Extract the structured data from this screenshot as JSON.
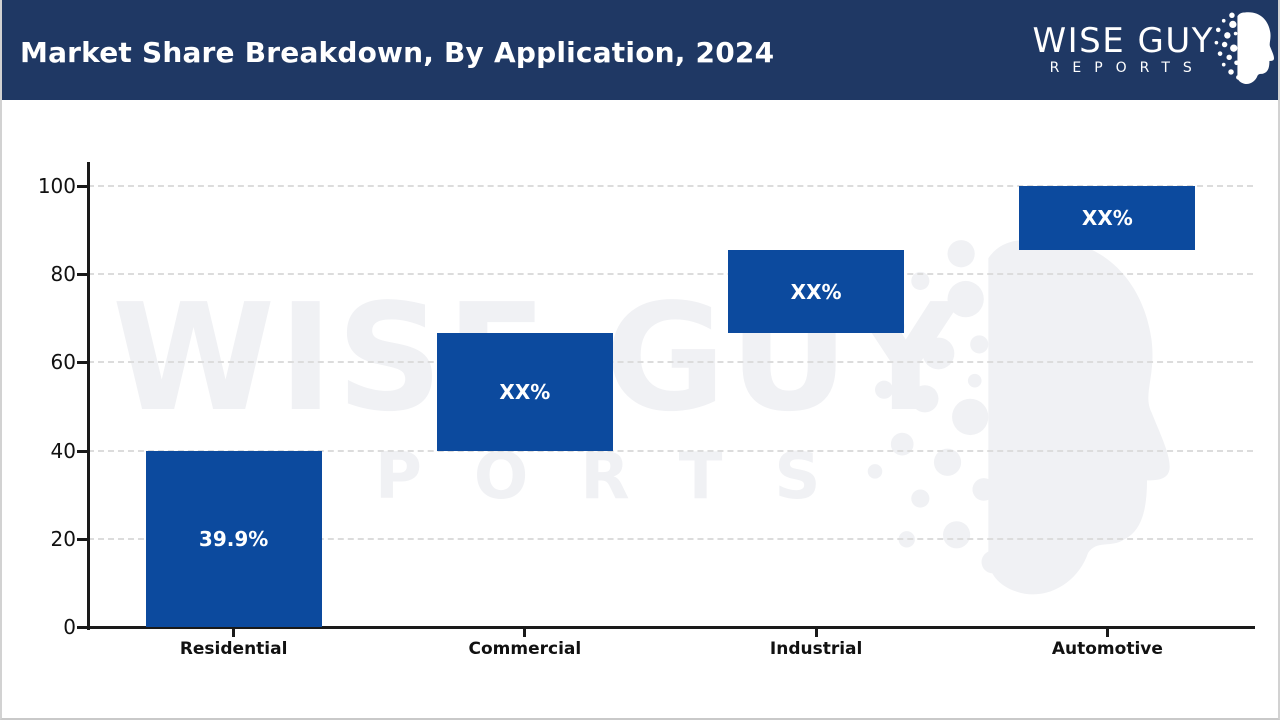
{
  "header": {
    "title": "Market Share Breakdown, By Application, 2024",
    "bg_color": "#1F3864",
    "logo": {
      "name": "WISE GUY",
      "subname": "REPORTS"
    }
  },
  "watermark": {
    "name": "WISE GUY",
    "subname": "REPORTS"
  },
  "chart_data": {
    "type": "bar",
    "variant": "waterfall",
    "title": "Market Share Breakdown, By Application, 2024",
    "categories": [
      "Residential",
      "Commercial",
      "Industrial",
      "Automotive"
    ],
    "segments": [
      {
        "category": "Residential",
        "start": 0,
        "end": 39.9,
        "label": "39.9%"
      },
      {
        "category": "Commercial",
        "start": 39.9,
        "end": 66.7,
        "label": "XX%"
      },
      {
        "category": "Industrial",
        "start": 66.7,
        "end": 85.4,
        "label": "XX%"
      },
      {
        "category": "Automotive",
        "start": 85.4,
        "end": 100,
        "label": "XX%"
      }
    ],
    "increment_values_pct": [
      39.9,
      26.8,
      18.7,
      14.6
    ],
    "bar_labels": [
      "39.9%",
      "XX%",
      "XX%",
      "XX%"
    ],
    "xlabel": "",
    "ylabel": "",
    "ylim": [
      0,
      100
    ],
    "yticks": [
      0,
      20,
      40,
      60,
      80,
      100
    ],
    "grid": {
      "horizontal": true,
      "style": "dashed",
      "color": "#dcdcdc"
    },
    "axis_color": "#1a1a1a",
    "tick_label_color": "#111111",
    "bar_color": "#0C4A9E",
    "bar_label_color": "#ffffff",
    "legend": "none"
  }
}
